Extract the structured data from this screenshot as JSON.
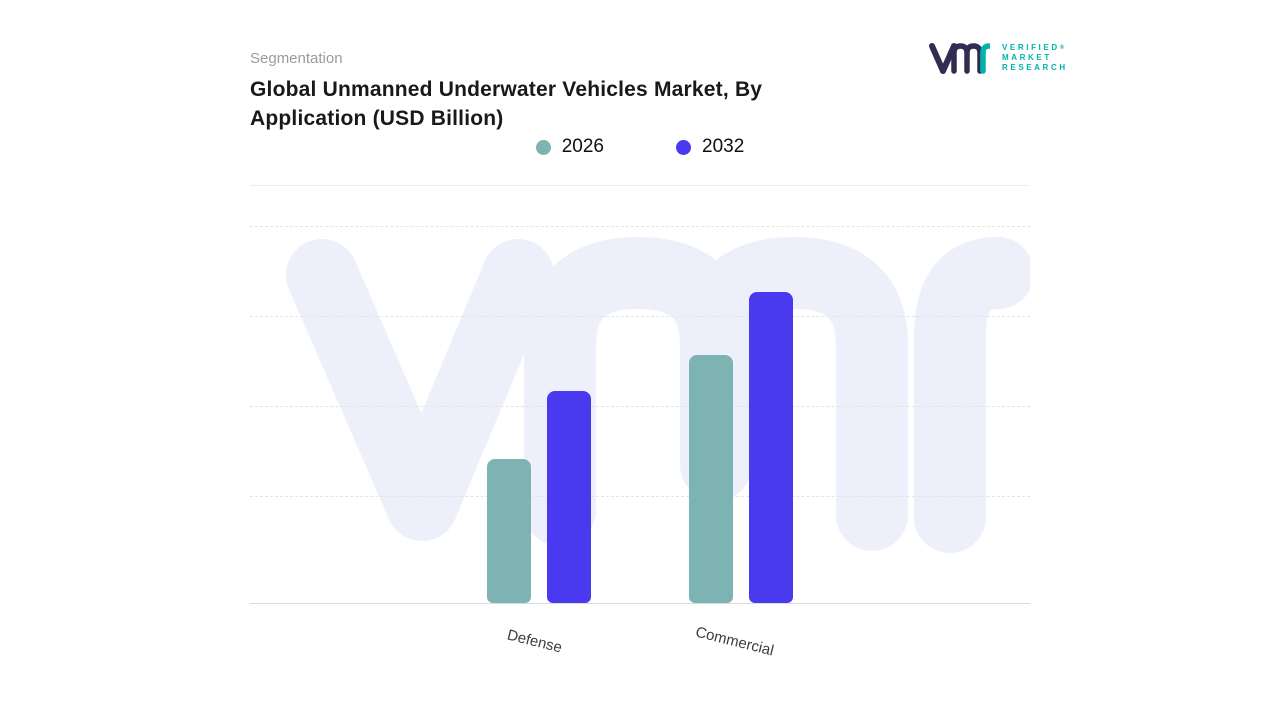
{
  "header": {
    "eyebrow": "Segmentation",
    "title": "Global Unmanned Underwater Vehicles Market, By Application (USD Billion)"
  },
  "brand": {
    "name": "VMR",
    "tagline_lines": [
      "VERIFIED",
      "MARKET",
      "RESEARCH"
    ],
    "registered_mark": "®",
    "accent_color": "#00b3ab",
    "dark_color": "#312d52"
  },
  "chart_data": {
    "type": "bar",
    "title": "Global Unmanned Underwater Vehicles Market, By Application (USD Billion)",
    "categories": [
      "Defense",
      "Commercial"
    ],
    "series": [
      {
        "name": "2026",
        "color": "#7db4b3",
        "values": [
          1.6,
          2.75
        ]
      },
      {
        "name": "2032",
        "color": "#4a3aef",
        "values": [
          2.35,
          3.45
        ]
      }
    ],
    "xlabel": "",
    "ylabel": "",
    "ylim": [
      0,
      4.2
    ],
    "y_tick_labels_visible": false,
    "grid": "horizontal-dashed",
    "legend_position": "top-center",
    "watermark_color": "#edeffb"
  }
}
